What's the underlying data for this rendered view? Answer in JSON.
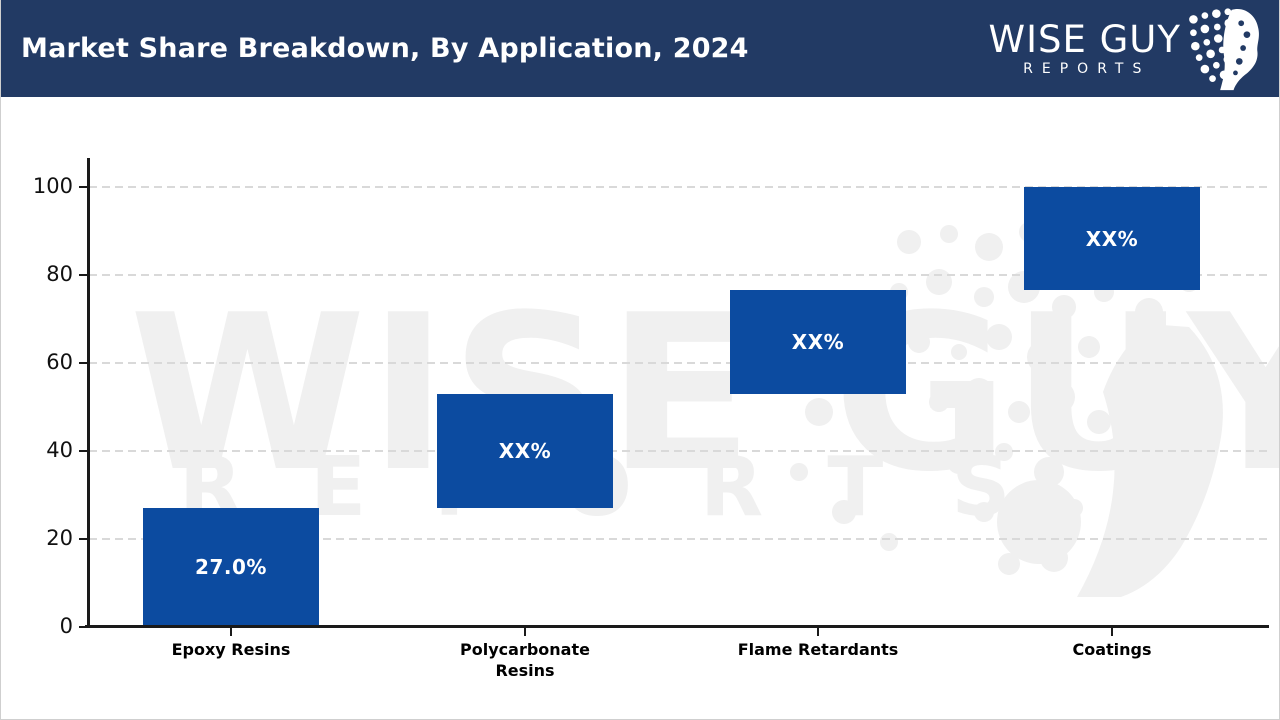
{
  "header": {
    "title": "Market Share Breakdown, By Application, 2024",
    "logo": {
      "line1": "WISE GUY",
      "line2": "REPORTS"
    }
  },
  "watermark": {
    "line1": "WISE GUY",
    "line2": "REPORTS"
  },
  "colors": {
    "header_bg": "#223a64",
    "bar": "#0c4ba0",
    "axis": "#1a1a1a",
    "gridline": "#d9d9d9",
    "watermark": "#f0f0f0",
    "bar_label": "#ffffff"
  },
  "chart_data": {
    "type": "bar",
    "subtype": "waterfall",
    "title": "Market Share Breakdown, By Application, 2024",
    "categories": [
      "Epoxy Resins",
      "Polycarbonate Resins",
      "Flame Retardants",
      "Coatings"
    ],
    "segments": [
      {
        "category": "Epoxy Resins",
        "display": "Epoxy Resins",
        "start": 0,
        "end": 27,
        "label": "27.0%"
      },
      {
        "category": "Polycarbonate Resins",
        "display": "Polycarbonate\nResins",
        "start": 27,
        "end": 53,
        "label": "XX%"
      },
      {
        "category": "Flame Retardants",
        "display": "Flame Retardants",
        "start": 53,
        "end": 76.5,
        "label": "XX%"
      },
      {
        "category": "Coatings",
        "display": "Coatings",
        "start": 76.5,
        "end": 100,
        "label": "XX%"
      }
    ],
    "xlabel": "",
    "ylabel": "",
    "ylim": [
      0,
      105
    ],
    "yticks": [
      0,
      20,
      40,
      60,
      80,
      100
    ],
    "grid": "horizontal-dashed",
    "legend": "none",
    "bar_color": "#0c4ba0",
    "value_label_color": "#ffffff"
  }
}
